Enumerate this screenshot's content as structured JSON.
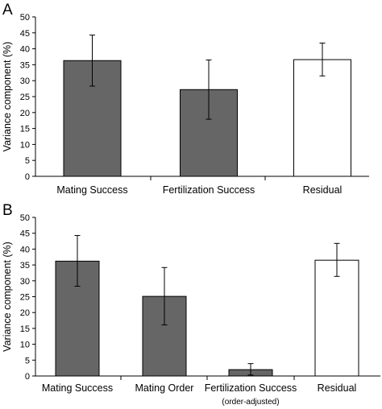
{
  "chart_data": [
    {
      "type": "bar",
      "panel_label": "A",
      "categories": [
        "Mating Success",
        "Fertilization Success",
        "Residual"
      ],
      "category_sublabels": [
        "",
        "",
        ""
      ],
      "values": [
        36.3,
        27.2,
        36.6
      ],
      "error_low": [
        28.3,
        17.9,
        31.5
      ],
      "error_high": [
        44.3,
        36.5,
        41.8
      ],
      "bar_colors": [
        "#666666",
        "#666666",
        "#ffffff"
      ],
      "ylabel": "Variance component (%)",
      "xlabel": "",
      "ylim": [
        0,
        50
      ],
      "yticks": [
        0,
        5,
        10,
        15,
        20,
        25,
        30,
        35,
        40,
        45,
        50
      ],
      "grid": false
    },
    {
      "type": "bar",
      "panel_label": "B",
      "categories": [
        "Mating Success",
        "Mating Order",
        "Fertilization Success",
        "Residual"
      ],
      "category_sublabels": [
        "",
        "",
        "(order-adjusted)",
        ""
      ],
      "values": [
        36.2,
        25.1,
        2.0,
        36.5
      ],
      "error_low": [
        28.3,
        16.1,
        0.3,
        31.4
      ],
      "error_high": [
        44.3,
        34.2,
        3.9,
        41.8
      ],
      "bar_colors": [
        "#666666",
        "#666666",
        "#666666",
        "#ffffff"
      ],
      "ylabel": "Variance component (%)",
      "xlabel": "",
      "ylim": [
        0,
        50
      ],
      "yticks": [
        0,
        5,
        10,
        15,
        20,
        25,
        30,
        35,
        40,
        45,
        50
      ],
      "grid": false
    }
  ]
}
